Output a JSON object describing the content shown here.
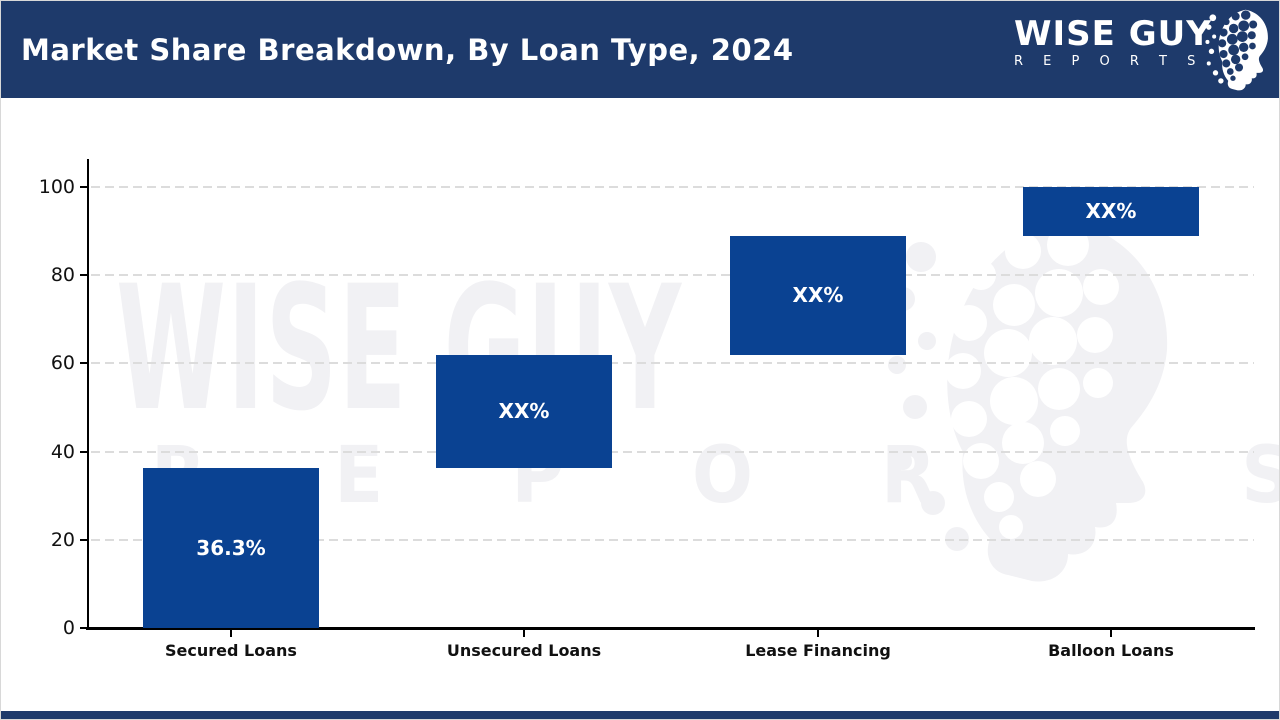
{
  "colors": {
    "header_bg": "#1e3a6b",
    "bar": "#0a4292",
    "grid": "#dcdcdc",
    "axis": "#000000",
    "watermark": "#f1f1f4",
    "title_text": "#ffffff",
    "bar_label_text": "#ffffff",
    "tick_label_text": "#111111"
  },
  "header": {
    "title": "Market Share Breakdown, By Loan Type, 2024",
    "logo_line1": "WISE GUY",
    "logo_line2": "R E P O R T S"
  },
  "watermark": {
    "line1": "WISE GUY",
    "line2": "R E P O R T S"
  },
  "chart_data": {
    "type": "bar",
    "subtype": "waterfall",
    "title": "Market Share Breakdown, By Loan Type, 2024",
    "categories": [
      "Secured Loans",
      "Unsecured Loans",
      "Lease Financing",
      "Balloon Loans"
    ],
    "series": [
      {
        "name": "Market Share (%)",
        "segments": [
          {
            "category": "Secured Loans",
            "start": 0,
            "end": 36.3,
            "label": "36.3%"
          },
          {
            "category": "Unsecured Loans",
            "start": 36.3,
            "end": 62,
            "label": "XX%"
          },
          {
            "category": "Lease Financing",
            "start": 62,
            "end": 89,
            "label": "XX%"
          },
          {
            "category": "Balloon Loans",
            "start": 89,
            "end": 100,
            "label": "XX%"
          }
        ]
      }
    ],
    "xlabel": "",
    "ylabel": "",
    "yticks": [
      0,
      20,
      40,
      60,
      80,
      100
    ],
    "ylim": [
      0,
      106
    ],
    "grid": {
      "horizontal": true,
      "style": "dashed"
    },
    "legend": null
  }
}
